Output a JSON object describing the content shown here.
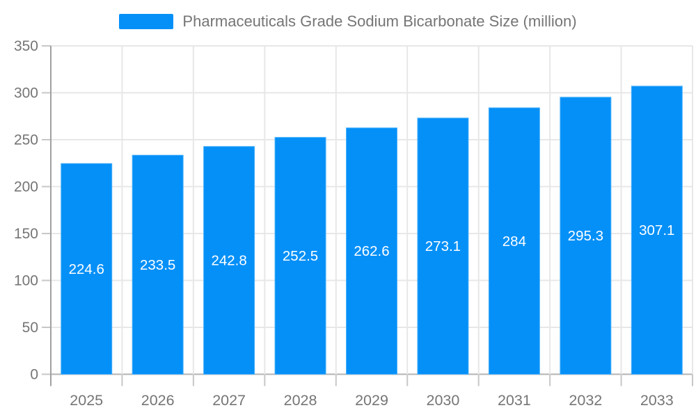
{
  "chart_data": {
    "type": "bar",
    "title": "Pharmaceuticals Grade Sodium Bicarbonate Size (million)",
    "categories": [
      "2025",
      "2026",
      "2027",
      "2028",
      "2029",
      "2030",
      "2031",
      "2032",
      "2033"
    ],
    "series": [
      {
        "name": "Pharmaceuticals Grade Sodium Bicarbonate Size (million)",
        "values": [
          224.6,
          233.5,
          242.8,
          252.5,
          262.6,
          273.1,
          284,
          295.3,
          307.1
        ],
        "value_labels": [
          "224.6",
          "233.5",
          "242.8",
          "252.5",
          "262.6",
          "273.1",
          "284",
          "295.3",
          "307.1"
        ]
      }
    ],
    "xlabel": "",
    "ylabel": "",
    "ylim": [
      0,
      350
    ],
    "ytick_step": 50,
    "ytick_labels": [
      "0",
      "50",
      "100",
      "150",
      "200",
      "250",
      "300",
      "350"
    ],
    "grid": true,
    "legend_position": "top",
    "data_label_position": "center-inside",
    "colors": {
      "bar": "#0590f8",
      "bar_edge": "#4db2f9",
      "gridline": "#e7e7e7",
      "baseline": "#b3b3b3",
      "axis_line": "#a0a0a0",
      "tick": "#c7c7c7",
      "axis_label_text": "#757575",
      "bar_label_text": "#ffffff"
    }
  },
  "legend": {
    "label": "Pharmaceuticals Grade Sodium Bicarbonate Size (million)"
  }
}
